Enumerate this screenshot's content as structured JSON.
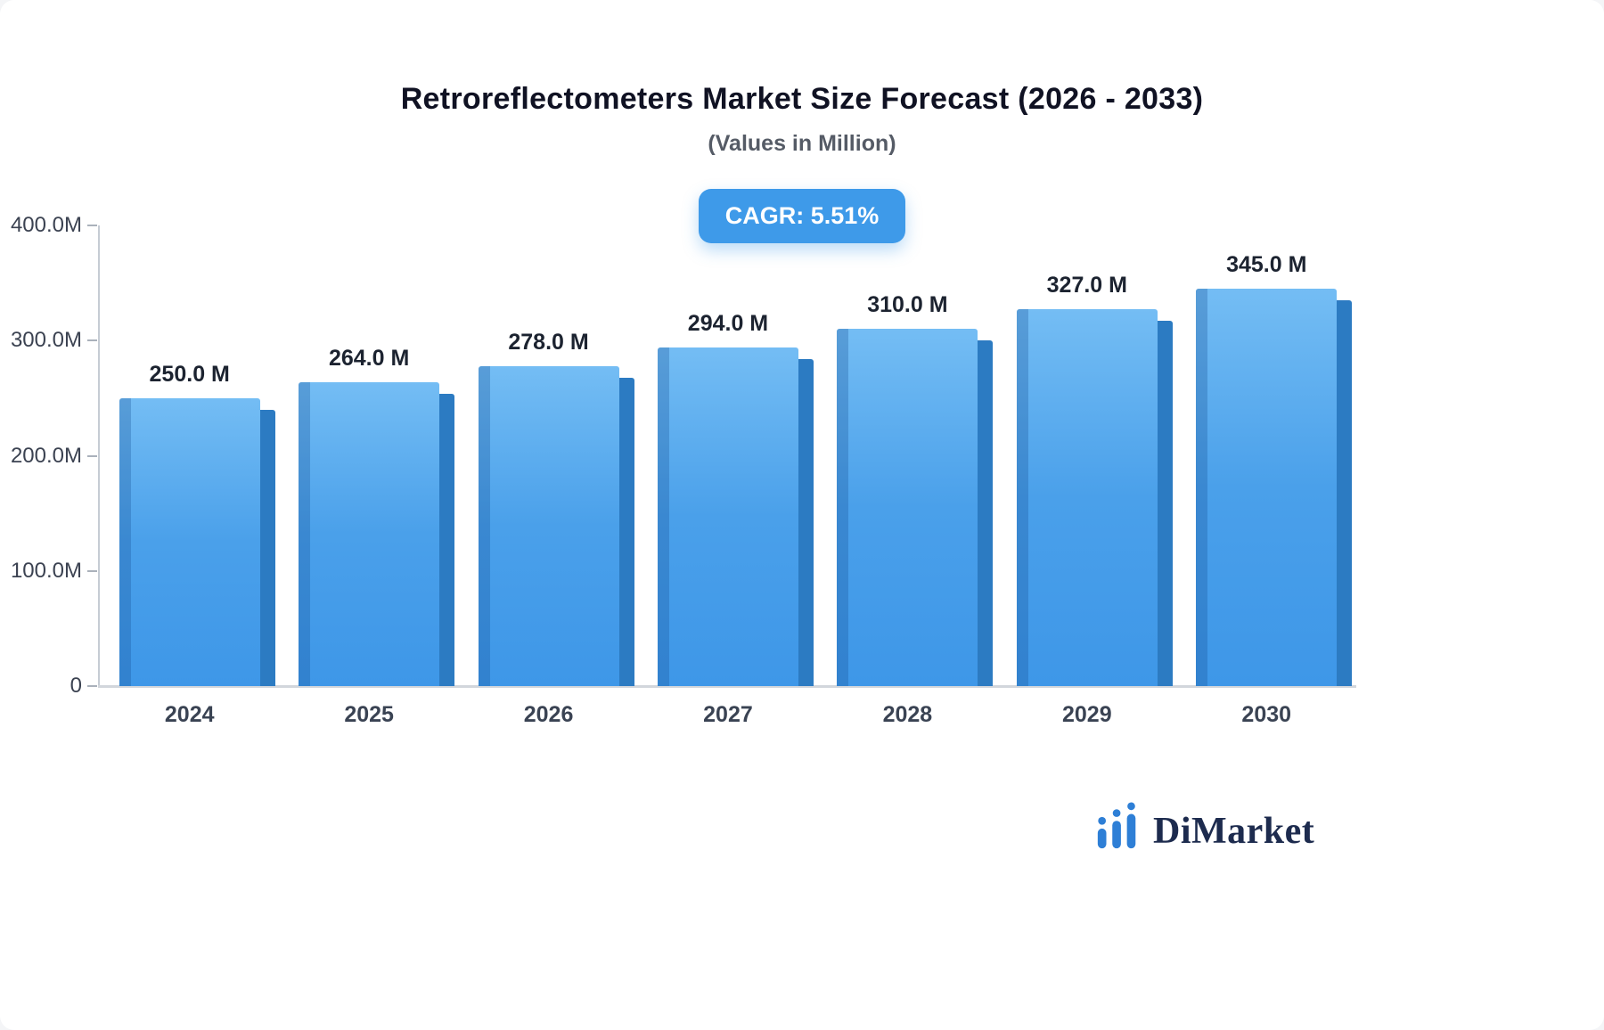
{
  "header": {
    "title": "Retroreflectometers Market Size Forecast (2026 - 2033)",
    "subtitle": "(Values in Million)"
  },
  "badge": {
    "label": "CAGR: 5.51%",
    "background": "#3e9ae9",
    "text_color": "#ffffff"
  },
  "chart_data": {
    "type": "bar",
    "title": "Retroreflectometers Market Size Forecast (2026 - 2033)",
    "subtitle": "(Values in Million)",
    "categories": [
      "2024",
      "2025",
      "2026",
      "2027",
      "2028",
      "2029",
      "2030"
    ],
    "values": [
      250,
      264,
      278,
      294,
      310,
      327,
      345
    ],
    "value_labels": [
      "250.0 M",
      "264.0 M",
      "278.0 M",
      "294.0 M",
      "310.0 M",
      "327.0 M",
      "345.0 M"
    ],
    "xlabel": "",
    "ylabel": "",
    "ylim": [
      0,
      400
    ],
    "yticks": [
      {
        "value": 400,
        "label": "400.0M"
      },
      {
        "value": 300,
        "label": "300.0M"
      },
      {
        "value": 200,
        "label": "200.0M"
      },
      {
        "value": 100,
        "label": "100.0M"
      },
      {
        "value": 0,
        "label": "0"
      }
    ],
    "grid": false,
    "legend": "none",
    "colors": {
      "bar_top": "#74bdf4",
      "bar_mid": "#4aa0ea",
      "bar_bottom": "#3e97e8",
      "bar_side": "#2c7bc2",
      "axis": "#c6ccd4"
    },
    "annotations": [
      "CAGR: 5.51%"
    ]
  },
  "logo": {
    "text": "DiMarket",
    "icon": "bar-chart-logo-icon",
    "text_color": "#1d2b4e",
    "accent_color": "#2e7fd6"
  }
}
